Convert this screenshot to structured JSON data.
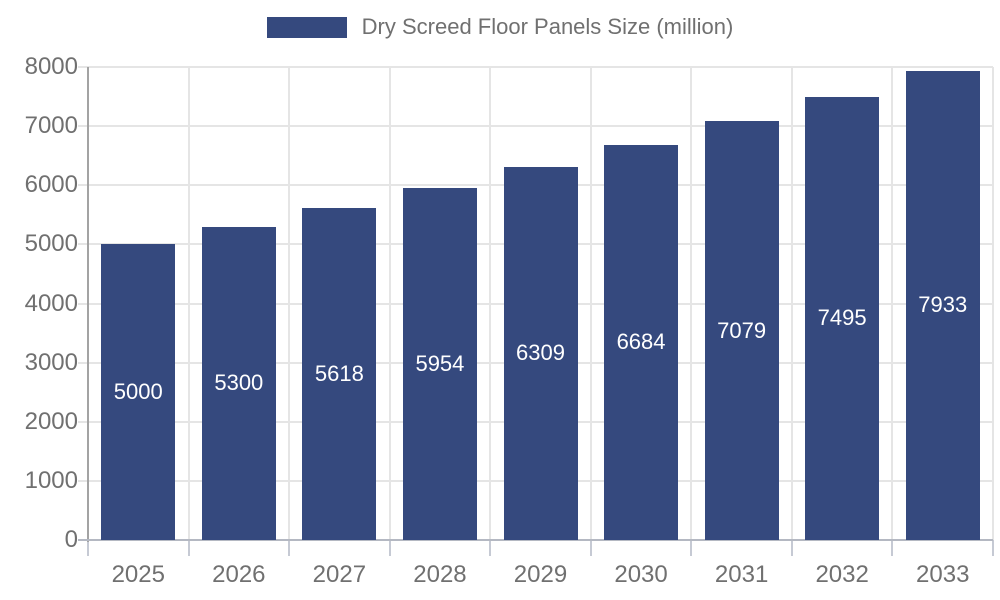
{
  "chart_data": {
    "type": "bar",
    "title": "Dry Screed Floor Panels Size (million)",
    "categories": [
      "2025",
      "2026",
      "2027",
      "2028",
      "2029",
      "2030",
      "2031",
      "2032",
      "2033"
    ],
    "values": [
      5000,
      5300,
      5618,
      5954,
      6309,
      6684,
      7079,
      7495,
      7933
    ],
    "y_ticks": [
      0,
      1000,
      2000,
      3000,
      4000,
      5000,
      6000,
      7000,
      8000
    ],
    "ylim": [
      0,
      8000
    ],
    "xlabel": "",
    "ylabel": "",
    "legend_position": "top",
    "grid": "on",
    "colors": {
      "bar": "#35497E",
      "bar_label": "#FFFFFF",
      "axis_text": "#707070",
      "legend_text": "#707070",
      "gridline": "#E5E5E5",
      "y_axis_line": "#A3A3A3",
      "x_axis_line": "#B4B8C2",
      "x_tick": "#C6CAD4",
      "background": "#FFFFFF"
    }
  }
}
